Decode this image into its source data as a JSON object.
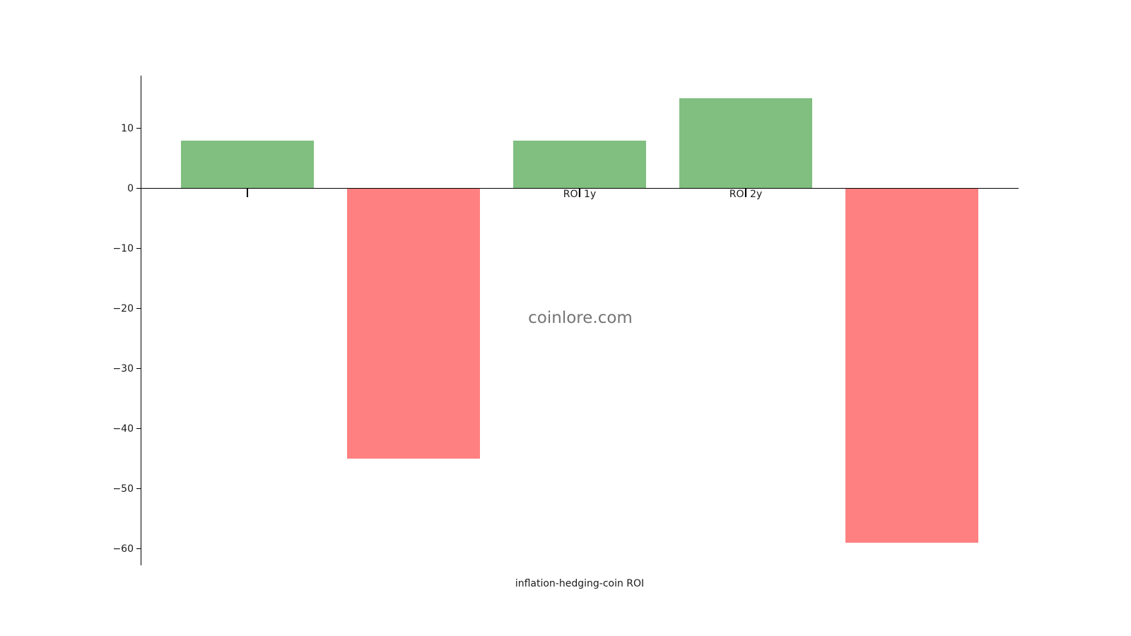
{
  "page": {
    "background": "#ffffff"
  },
  "watermark": {
    "text": "coinlore.com",
    "color": "#757575"
  },
  "chart_data": {
    "type": "bar",
    "title": "inflation-hedging-coin ROI",
    "categories": [
      "",
      "",
      "ROI 1y",
      "ROI 2y",
      ""
    ],
    "values": [
      8,
      -45,
      8,
      15,
      -59
    ],
    "series": [
      {
        "name": "ROI",
        "values": [
          8,
          -45,
          8,
          15,
          -59
        ]
      }
    ],
    "bar_colors": {
      "positive": "#80bf80",
      "negative": "#ff8080"
    },
    "axis_color": "#000000",
    "text_color": "#1a1a1a",
    "yticks": [
      {
        "value": 10,
        "label": "10"
      },
      {
        "value": 0,
        "label": "0"
      },
      {
        "value": -10,
        "label": "−10"
      },
      {
        "value": -20,
        "label": "−20"
      },
      {
        "value": -30,
        "label": "−30"
      },
      {
        "value": -40,
        "label": "−40"
      },
      {
        "value": -50,
        "label": "−50"
      },
      {
        "value": -60,
        "label": "−60"
      }
    ],
    "xticks": [
      {
        "index": 0,
        "label": ""
      },
      {
        "index": 2,
        "label": "ROI 1y"
      },
      {
        "index": 3,
        "label": "ROI 2y"
      }
    ],
    "ylim": [
      -62.5,
      18.7
    ],
    "xlabel": "inflation-hedging-coin ROI",
    "ylabel": "",
    "grid": false,
    "legend": false
  }
}
